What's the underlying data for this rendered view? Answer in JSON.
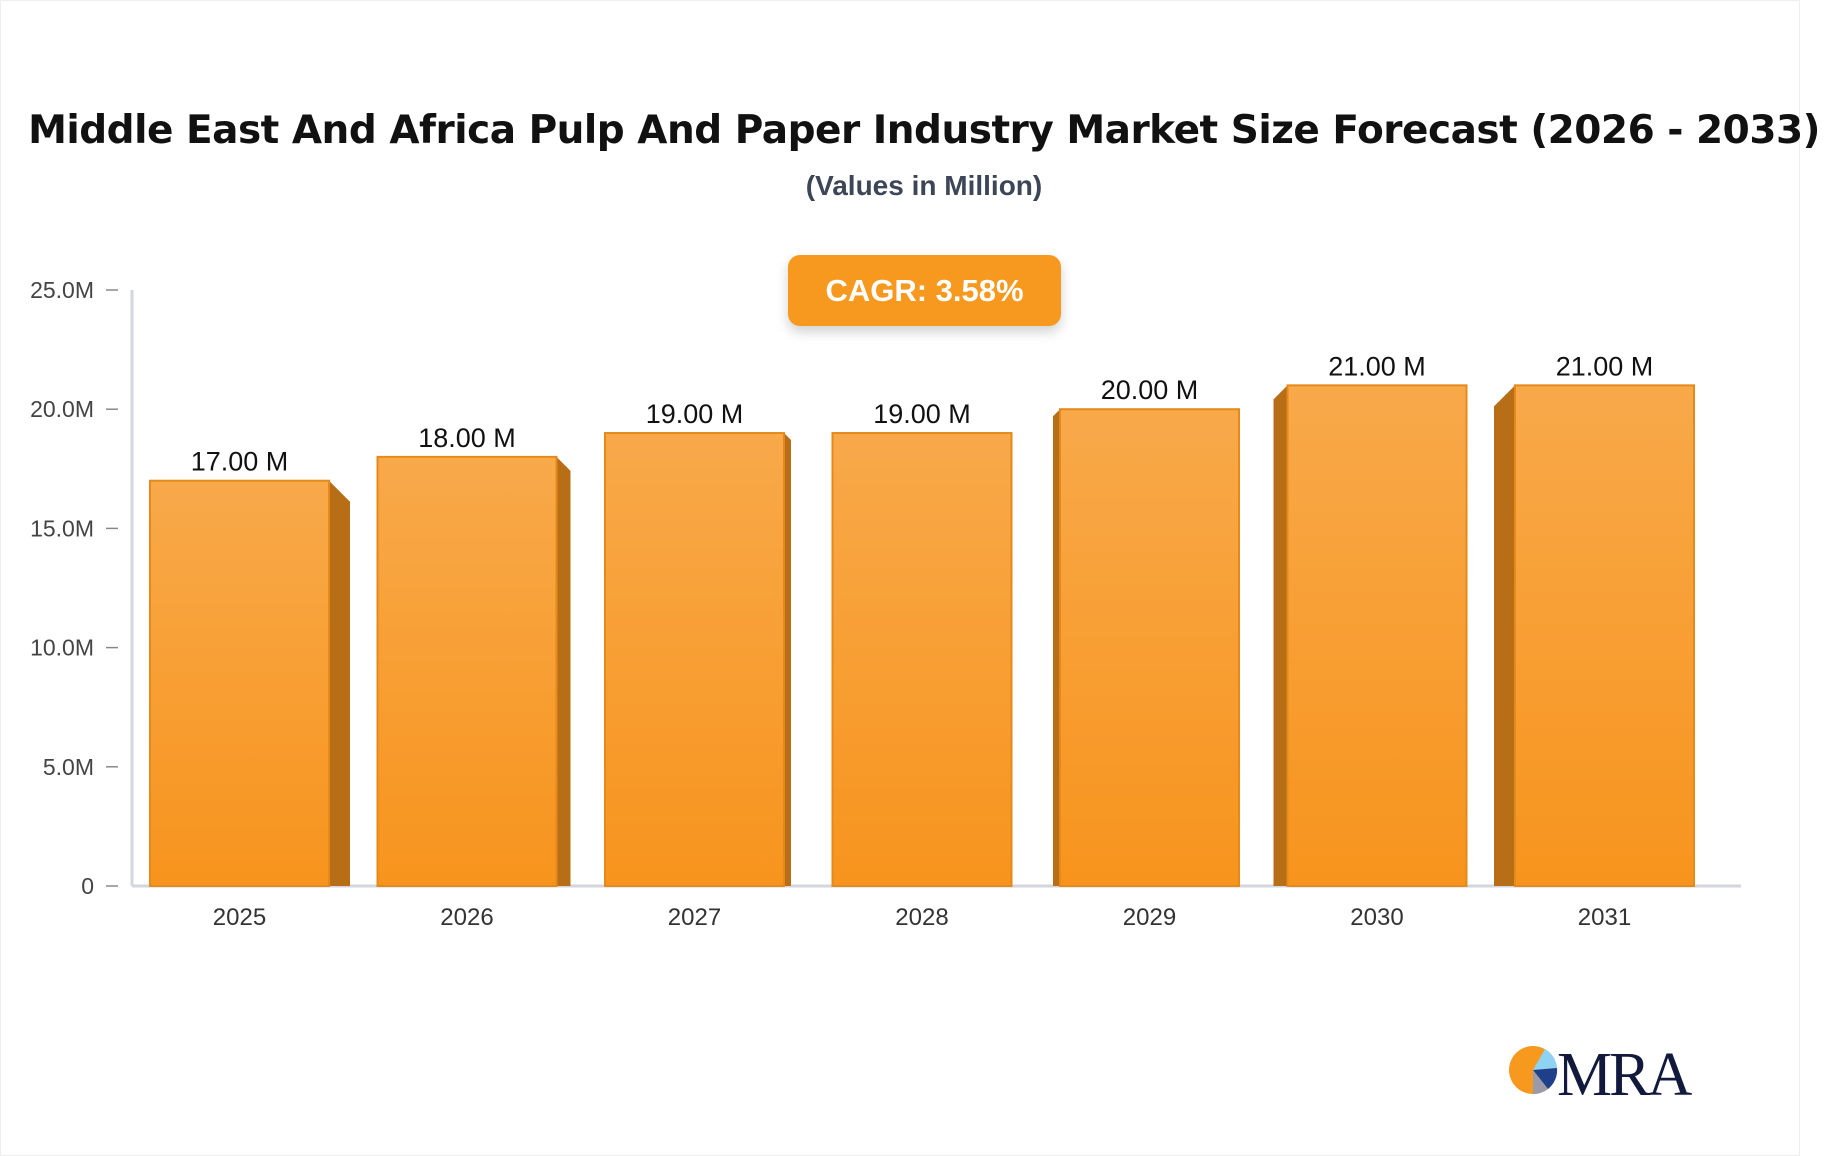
{
  "chart_data": {
    "type": "bar",
    "title": "Middle East And Africa Pulp And Paper Industry Market Size Forecast (2026 - 2033)",
    "subtitle": "(Values in Million)",
    "annotation": "CAGR: 3.58%",
    "categories": [
      "2025",
      "2026",
      "2027",
      "2028",
      "2029",
      "2030",
      "2031"
    ],
    "values": [
      17,
      18,
      19,
      19,
      20,
      21,
      21
    ],
    "data_labels": [
      "17.00 M",
      "18.00 M",
      "19.00 M",
      "19.00 M",
      "20.00 M",
      "21.00 M",
      "21.00 M"
    ],
    "ylim": [
      0,
      25
    ],
    "yticks": [
      0,
      5,
      10,
      15,
      20,
      25
    ],
    "ytick_labels": [
      "0",
      "5.0M",
      "10.0M",
      "15.0M",
      "20.0M",
      "25.0M"
    ],
    "xlabel": "",
    "ylabel": "",
    "grid": false,
    "legend": "none",
    "colors": {
      "bar": "#f7a540",
      "bar_bottom": "#f7941d",
      "bar_side": "#b86e17",
      "cagr_badge": "#f7981f"
    }
  },
  "logo": {
    "text": "MRA"
  }
}
